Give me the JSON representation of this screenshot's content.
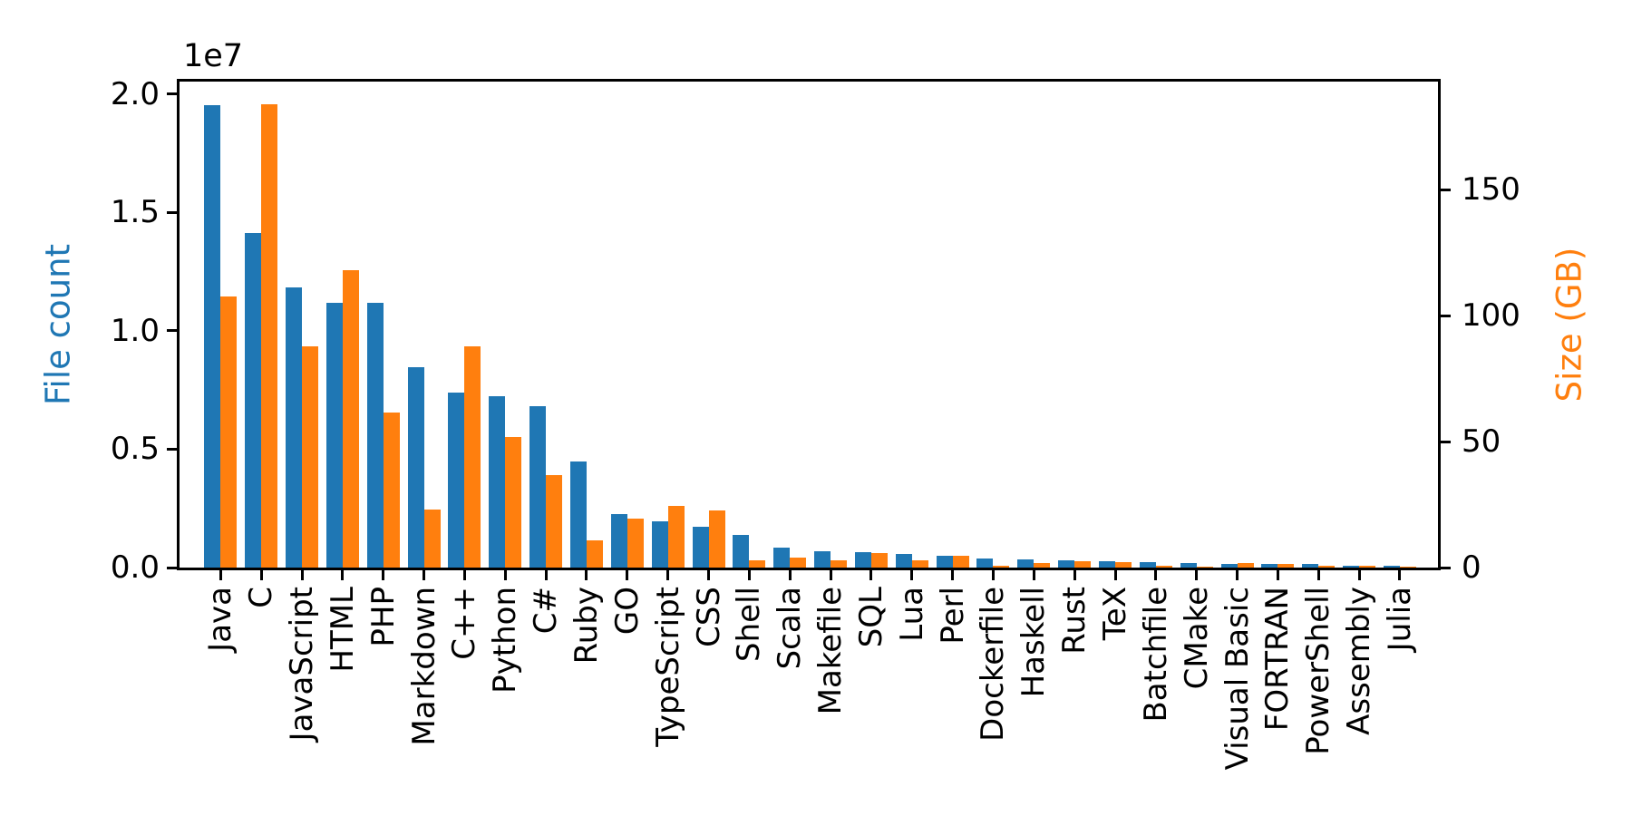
{
  "chart_data": {
    "type": "bar",
    "title": "",
    "categories": [
      "Java",
      "C",
      "JavaScript",
      "HTML",
      "PHP",
      "Markdown",
      "C++",
      "Python",
      "C#",
      "Ruby",
      "GO",
      "TypeScript",
      "CSS",
      "Shell",
      "Scala",
      "Makefile",
      "SQL",
      "Lua",
      "Perl",
      "Dockerfile",
      "Haskell",
      "Rust",
      "TeX",
      "Batchfile",
      "CMake",
      "Visual Basic",
      "FORTRAN",
      "PowerShell",
      "Assembly",
      "Julia"
    ],
    "series": [
      {
        "name": "File count",
        "axis": "left",
        "color": "#1f77b4",
        "values": [
          19548190,
          14143113,
          11839883,
          11178557,
          11177610,
          8464626,
          7380520,
          7226626,
          6811652,
          4473331,
          2265436,
          1940406,
          1734406,
          1385648,
          835755,
          679430,
          656671,
          578554,
          497949,
          366505,
          340623,
          322431,
          251015,
          236945,
          175282,
          155652,
          142038,
          136846,
          82905,
          58317
        ]
      },
      {
        "name": "Size (GB)",
        "axis": "right",
        "color": "#ff7f0e",
        "values": [
          107.7,
          183.83,
          87.82,
          118.12,
          61.41,
          23.09,
          87.73,
          52.03,
          36.83,
          10.95,
          19.28,
          24.59,
          22.67,
          3.01,
          3.87,
          2.92,
          5.67,
          2.81,
          4.7,
          0.71,
          1.85,
          2.68,
          2.15,
          0.7,
          0.54,
          1.91,
          1.62,
          0.69,
          0.78,
          0.29
        ]
      }
    ],
    "left_axis": {
      "label": "File count",
      "color": "#1f77b4",
      "offset_text": "1e7",
      "tick_labels": [
        "0.0",
        "0.5",
        "1.0",
        "1.5",
        "2.0"
      ],
      "tick_values": [
        0,
        5000000,
        10000000,
        15000000,
        20000000
      ],
      "ylim": [
        0,
        20525600
      ]
    },
    "right_axis": {
      "label": "Size (GB)",
      "color": "#ff7f0e",
      "tick_labels": [
        "0",
        "50",
        "100",
        "150"
      ],
      "tick_values": [
        0,
        50,
        100,
        150
      ],
      "ylim": [
        0,
        193.0
      ]
    },
    "grid": false,
    "legend": false
  }
}
